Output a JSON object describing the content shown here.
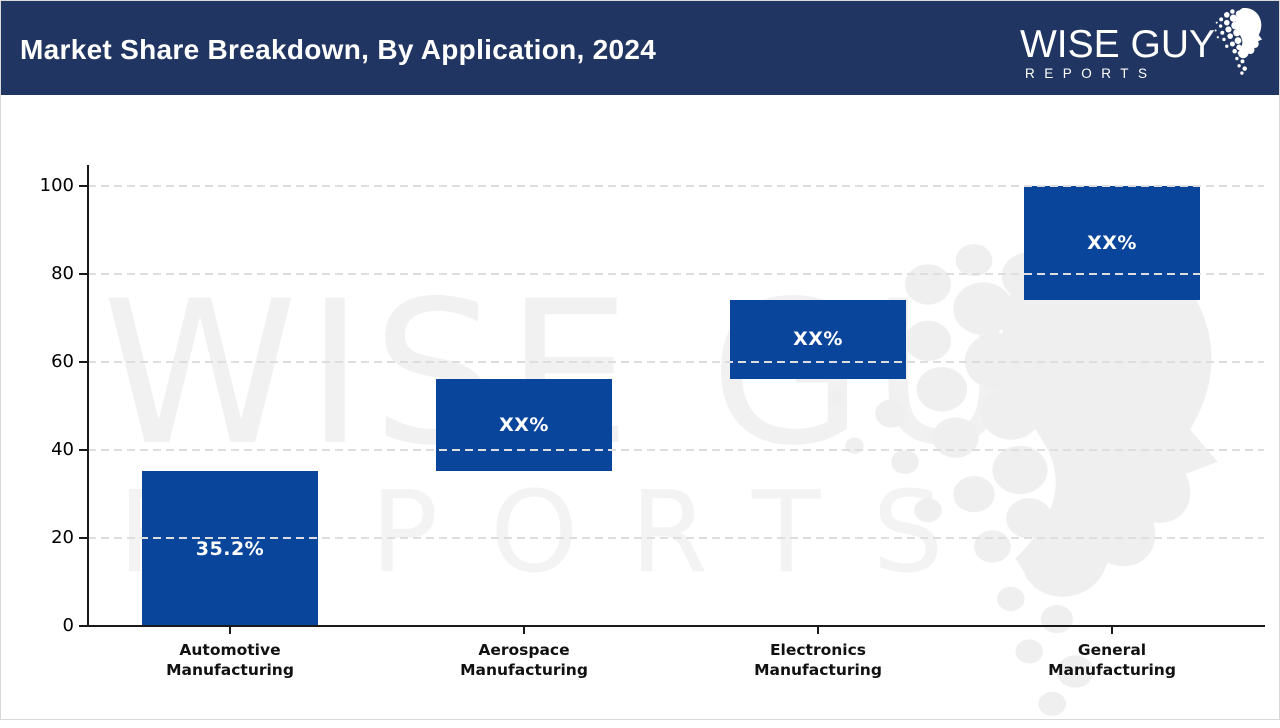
{
  "header": {
    "title": "Market Share Breakdown, By Application, 2024",
    "logo_primary": "WISE GUY",
    "logo_secondary": "REPORTS"
  },
  "watermark": {
    "primary": "WISE GUY",
    "secondary": "REPORTS"
  },
  "chart_data": {
    "type": "bar",
    "variant": "waterfall",
    "title": "Market Share Breakdown, By Application, 2024",
    "categories": [
      "Automotive Manufacturing",
      "Aerospace Manufacturing",
      "Electronics Manufacturing",
      "General Manufacturing"
    ],
    "segments": [
      {
        "category": "Automotive Manufacturing",
        "start": 0,
        "end": 35.2,
        "label": "35.2%"
      },
      {
        "category": "Aerospace Manufacturing",
        "start": 35.2,
        "end": 56.2,
        "label": "XX%"
      },
      {
        "category": "Electronics Manufacturing",
        "start": 56.2,
        "end": 74.1,
        "label": "XX%"
      },
      {
        "category": "General Manufacturing",
        "start": 74.1,
        "end": 100,
        "label": "XX%"
      }
    ],
    "yticks": [
      0,
      20,
      40,
      60,
      80,
      100
    ],
    "ylim": [
      0,
      104
    ],
    "xlabel": "",
    "ylabel": "",
    "grid": "dashed-horizontal",
    "legend": "none",
    "colors": {
      "bar": "#0a459c",
      "bar_label": "#ffffff",
      "grid": "#dedede",
      "axis": "#1a1a1a",
      "header_bg": "#203561",
      "watermark": "#f1f1f1"
    }
  }
}
